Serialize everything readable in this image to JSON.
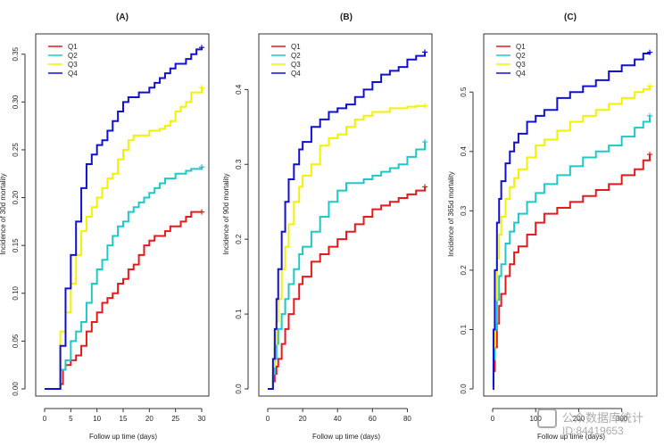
{
  "watermark": {
    "line1": "公众数据库统计",
    "line2": "ID:84419653"
  },
  "colors": {
    "Q1": "#e41a1c",
    "Q2": "#1ec8c8",
    "Q3": "#f2f200",
    "Q4": "#1010d0"
  },
  "chart_data": [
    {
      "type": "line",
      "title": "(A)",
      "xlabel": "Follow up time (days)",
      "ylabel": "Incidence of 30d mortality",
      "xlim": [
        0,
        30
      ],
      "ylim": [
        0,
        0.36
      ],
      "xticks": [
        "0",
        "5",
        "10",
        "15",
        "20",
        "25",
        "30"
      ],
      "xtick_values": [
        0,
        5,
        10,
        15,
        20,
        25,
        30
      ],
      "yticks": [
        "0.00",
        "0.05",
        "0.10",
        "0.15",
        "0.20",
        "0.25",
        "0.30",
        "0.35"
      ],
      "ytick_values": [
        0,
        0.05,
        0.1,
        0.15,
        0.2,
        0.25,
        0.3,
        0.35
      ],
      "legend": "top-left",
      "step": true,
      "series": [
        {
          "name": "Q1",
          "x": [
            0,
            3,
            3.5,
            4,
            5,
            6,
            7,
            8,
            9,
            10,
            11,
            12,
            13,
            14,
            15,
            16,
            17,
            18,
            19,
            20,
            21,
            22,
            23,
            24,
            25,
            26,
            27,
            28,
            29,
            30
          ],
          "y": [
            0,
            0.005,
            0.02,
            0.025,
            0.03,
            0.035,
            0.045,
            0.06,
            0.07,
            0.08,
            0.09,
            0.095,
            0.1,
            0.11,
            0.115,
            0.125,
            0.13,
            0.14,
            0.15,
            0.155,
            0.16,
            0.16,
            0.165,
            0.17,
            0.17,
            0.175,
            0.18,
            0.185,
            0.185,
            0.185
          ]
        },
        {
          "name": "Q2",
          "x": [
            0,
            3,
            3.5,
            4,
            5,
            6,
            7,
            8,
            9,
            10,
            11,
            12,
            13,
            14,
            15,
            16,
            17,
            18,
            19,
            20,
            21,
            22,
            23,
            24,
            25,
            26,
            27,
            28,
            29,
            30
          ],
          "y": [
            0,
            0.02,
            0.02,
            0.03,
            0.05,
            0.06,
            0.07,
            0.09,
            0.11,
            0.125,
            0.135,
            0.15,
            0.16,
            0.17,
            0.175,
            0.185,
            0.19,
            0.195,
            0.2,
            0.205,
            0.21,
            0.215,
            0.22,
            0.22,
            0.225,
            0.225,
            0.228,
            0.23,
            0.23,
            0.232
          ]
        },
        {
          "name": "Q3",
          "x": [
            0,
            3,
            3.5,
            4,
            5,
            6,
            7,
            8,
            9,
            10,
            11,
            12,
            13,
            14,
            15,
            16,
            17,
            18,
            19,
            20,
            21,
            22,
            23,
            24,
            25,
            26,
            27,
            28,
            29,
            30
          ],
          "y": [
            0,
            0.06,
            0.06,
            0.08,
            0.11,
            0.14,
            0.165,
            0.18,
            0.19,
            0.2,
            0.21,
            0.22,
            0.225,
            0.24,
            0.25,
            0.26,
            0.265,
            0.265,
            0.265,
            0.27,
            0.27,
            0.272,
            0.275,
            0.28,
            0.29,
            0.295,
            0.3,
            0.31,
            0.31,
            0.315
          ]
        },
        {
          "name": "Q4",
          "x": [
            0,
            3,
            3.5,
            4,
            5,
            6,
            7,
            8,
            9,
            10,
            11,
            12,
            13,
            14,
            15,
            16,
            17,
            18,
            19,
            20,
            21,
            22,
            23,
            24,
            25,
            26,
            27,
            28,
            29,
            30
          ],
          "y": [
            0,
            0.045,
            0.045,
            0.105,
            0.14,
            0.175,
            0.21,
            0.235,
            0.245,
            0.255,
            0.26,
            0.27,
            0.28,
            0.29,
            0.3,
            0.305,
            0.305,
            0.31,
            0.31,
            0.315,
            0.32,
            0.325,
            0.33,
            0.335,
            0.34,
            0.34,
            0.345,
            0.35,
            0.355,
            0.357
          ]
        }
      ]
    },
    {
      "type": "line",
      "title": "(B)",
      "xlabel": "Follow up time (days)",
      "ylabel": "Incidence of 90d mortality",
      "xlim": [
        0,
        90
      ],
      "ylim": [
        0,
        0.46
      ],
      "xticks": [
        "0",
        "20",
        "40",
        "60",
        "80"
      ],
      "xtick_values": [
        0,
        20,
        40,
        60,
        80
      ],
      "yticks": [
        "0.0",
        "0.1",
        "0.2",
        "0.3",
        "0.4"
      ],
      "ytick_values": [
        0,
        0.1,
        0.2,
        0.3,
        0.4
      ],
      "legend": "top-left",
      "step": true,
      "series": [
        {
          "name": "Q1",
          "x": [
            0,
            3,
            4,
            5,
            6,
            8,
            10,
            12,
            15,
            18,
            20,
            25,
            30,
            35,
            40,
            45,
            50,
            55,
            60,
            65,
            70,
            75,
            80,
            85,
            90
          ],
          "y": [
            0,
            0.01,
            0.02,
            0.03,
            0.04,
            0.06,
            0.08,
            0.1,
            0.12,
            0.14,
            0.15,
            0.17,
            0.18,
            0.19,
            0.2,
            0.21,
            0.22,
            0.23,
            0.24,
            0.245,
            0.25,
            0.255,
            0.26,
            0.265,
            0.27
          ]
        },
        {
          "name": "Q2",
          "x": [
            0,
            3,
            4,
            5,
            6,
            8,
            10,
            12,
            15,
            18,
            20,
            25,
            30,
            35,
            40,
            45,
            50,
            55,
            60,
            65,
            70,
            75,
            80,
            85,
            90
          ],
          "y": [
            0,
            0.02,
            0.04,
            0.06,
            0.08,
            0.1,
            0.12,
            0.14,
            0.16,
            0.18,
            0.19,
            0.21,
            0.23,
            0.25,
            0.265,
            0.275,
            0.275,
            0.28,
            0.285,
            0.29,
            0.295,
            0.3,
            0.31,
            0.32,
            0.33
          ]
        },
        {
          "name": "Q3",
          "x": [
            0,
            3,
            4,
            5,
            6,
            8,
            10,
            12,
            15,
            18,
            20,
            25,
            30,
            35,
            40,
            45,
            50,
            55,
            60,
            65,
            70,
            75,
            80,
            85,
            90
          ],
          "y": [
            0,
            0.03,
            0.06,
            0.09,
            0.12,
            0.16,
            0.19,
            0.22,
            0.25,
            0.27,
            0.285,
            0.3,
            0.325,
            0.335,
            0.34,
            0.35,
            0.36,
            0.365,
            0.37,
            0.37,
            0.375,
            0.375,
            0.377,
            0.378,
            0.378
          ]
        },
        {
          "name": "Q4",
          "x": [
            0,
            3,
            4,
            5,
            6,
            8,
            10,
            12,
            15,
            18,
            20,
            25,
            30,
            35,
            40,
            45,
            50,
            55,
            60,
            65,
            70,
            75,
            80,
            85,
            90
          ],
          "y": [
            0,
            0.04,
            0.08,
            0.12,
            0.16,
            0.21,
            0.25,
            0.28,
            0.3,
            0.32,
            0.33,
            0.35,
            0.36,
            0.37,
            0.375,
            0.38,
            0.39,
            0.4,
            0.41,
            0.42,
            0.425,
            0.43,
            0.44,
            0.445,
            0.45
          ]
        }
      ]
    },
    {
      "type": "line",
      "title": "(C)",
      "xlabel": "Follow up time (days)",
      "ylabel": "Incidence of 365d mortality",
      "xlim": [
        0,
        365
      ],
      "ylim": [
        0,
        0.58
      ],
      "xticks": [
        "0",
        "100",
        "200",
        "300"
      ],
      "xtick_values": [
        0,
        100,
        200,
        300
      ],
      "yticks": [
        "0.0",
        "0.1",
        "0.2",
        "0.3",
        "0.4",
        "0.5"
      ],
      "ytick_values": [
        0,
        0.1,
        0.2,
        0.3,
        0.4,
        0.5
      ],
      "legend": "top-left",
      "step": true,
      "series": [
        {
          "name": "Q1",
          "x": [
            0,
            2,
            5,
            10,
            15,
            20,
            30,
            40,
            50,
            60,
            80,
            100,
            120,
            150,
            180,
            210,
            240,
            270,
            300,
            330,
            350,
            365
          ],
          "y": [
            0,
            0.03,
            0.07,
            0.11,
            0.14,
            0.16,
            0.19,
            0.21,
            0.23,
            0.24,
            0.26,
            0.28,
            0.295,
            0.305,
            0.315,
            0.325,
            0.335,
            0.345,
            0.36,
            0.37,
            0.385,
            0.395
          ]
        },
        {
          "name": "Q2",
          "x": [
            0,
            2,
            5,
            10,
            15,
            20,
            30,
            40,
            50,
            60,
            80,
            100,
            120,
            150,
            180,
            210,
            240,
            270,
            300,
            330,
            350,
            365
          ],
          "y": [
            0,
            0.05,
            0.1,
            0.15,
            0.19,
            0.21,
            0.245,
            0.265,
            0.28,
            0.295,
            0.315,
            0.33,
            0.345,
            0.36,
            0.375,
            0.39,
            0.4,
            0.41,
            0.425,
            0.44,
            0.45,
            0.46
          ]
        },
        {
          "name": "Q3",
          "x": [
            0,
            2,
            5,
            10,
            15,
            20,
            30,
            40,
            50,
            60,
            80,
            100,
            120,
            150,
            180,
            210,
            240,
            270,
            300,
            330,
            350,
            365
          ],
          "y": [
            0,
            0.07,
            0.15,
            0.22,
            0.26,
            0.29,
            0.32,
            0.34,
            0.355,
            0.37,
            0.39,
            0.41,
            0.42,
            0.435,
            0.45,
            0.46,
            0.47,
            0.48,
            0.49,
            0.5,
            0.505,
            0.51
          ]
        },
        {
          "name": "Q4",
          "x": [
            0,
            2,
            5,
            10,
            15,
            20,
            30,
            40,
            50,
            60,
            80,
            100,
            120,
            150,
            180,
            210,
            240,
            270,
            300,
            330,
            350,
            365
          ],
          "y": [
            0,
            0.1,
            0.2,
            0.28,
            0.32,
            0.35,
            0.38,
            0.4,
            0.415,
            0.43,
            0.45,
            0.46,
            0.47,
            0.49,
            0.5,
            0.51,
            0.52,
            0.535,
            0.545,
            0.555,
            0.565,
            0.567
          ]
        }
      ]
    }
  ]
}
